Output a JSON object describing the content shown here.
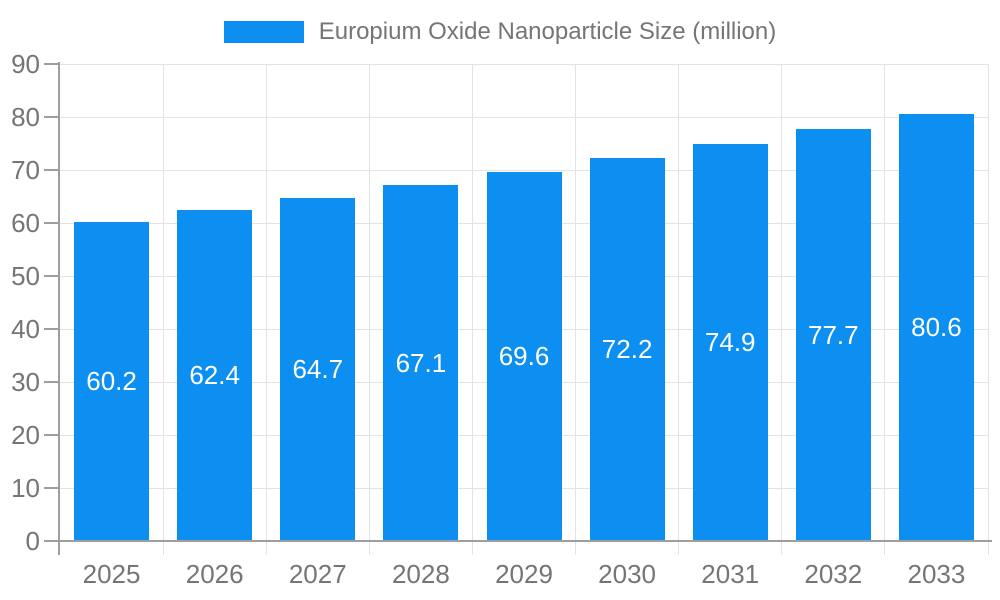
{
  "chart_data": {
    "type": "bar",
    "title": "Europium Oxide Nanoparticle Size (million)",
    "categories": [
      "2025",
      "2026",
      "2027",
      "2028",
      "2029",
      "2030",
      "2031",
      "2032",
      "2033"
    ],
    "values": [
      60.2,
      62.4,
      64.7,
      67.1,
      69.6,
      72.2,
      74.9,
      77.7,
      80.6
    ],
    "bar_value_labels": [
      "60.2",
      "62.4",
      "64.7",
      "67.1",
      "69.6",
      "72.2",
      "74.9",
      "77.7",
      "80.6"
    ],
    "xlabel": "",
    "ylabel": "",
    "ylim": [
      0,
      90
    ],
    "yticks": [
      0,
      10,
      20,
      30,
      40,
      50,
      60,
      70,
      80,
      90
    ],
    "grid": true,
    "legend": {
      "position": "top",
      "label": "Europium Oxide Nanoparticle Size (million)"
    },
    "colors": {
      "bar": "#0d8ff2",
      "bar_label": "#ffffff",
      "grid": "#e3e3e3",
      "axis": "#9e9e9e",
      "label": "#757575",
      "background": "#ffffff"
    }
  }
}
